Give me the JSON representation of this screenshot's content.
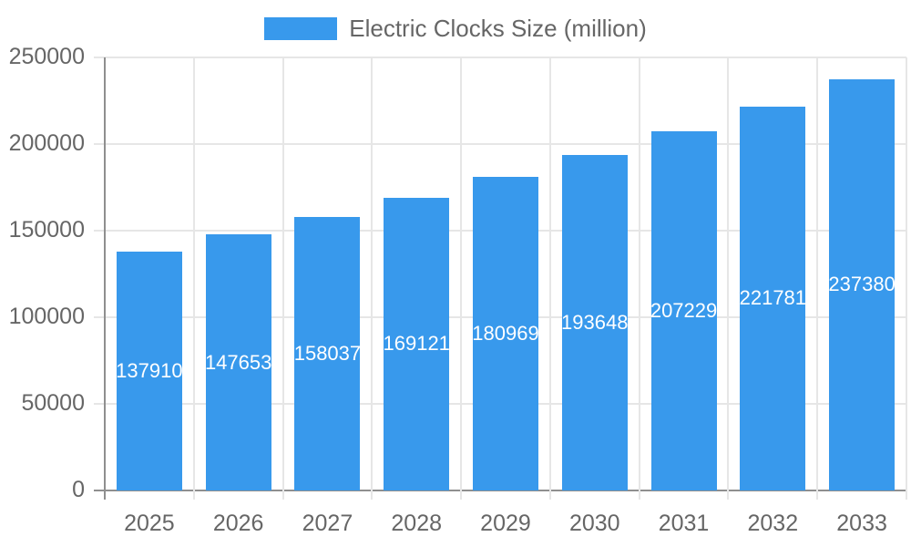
{
  "chart_data": {
    "type": "bar",
    "title": "",
    "legend": {
      "label": "Electric Clocks Size (million)",
      "position": "top"
    },
    "categories": [
      "2025",
      "2026",
      "2027",
      "2028",
      "2029",
      "2030",
      "2031",
      "2032",
      "2033"
    ],
    "series": [
      {
        "name": "Electric Clocks Size (million)",
        "values": [
          137910,
          147653,
          158037,
          169121,
          180969,
          193648,
          207229,
          221781,
          237380
        ]
      }
    ],
    "bar_labels": [
      "137910",
      "147653",
      "158037",
      "169121",
      "180969",
      "193648",
      "207229",
      "221781",
      "237380"
    ],
    "xlabel": "",
    "ylabel": "",
    "ylim": [
      0,
      250000
    ],
    "ytick_step": 50000,
    "ytick_labels": [
      "0",
      "50000",
      "100000",
      "150000",
      "200000",
      "250000"
    ],
    "grid": true,
    "colors": {
      "bar": "#3899EC",
      "bar_label_text": "#FFFFFF",
      "axis_text": "#666666",
      "grid_line": "#E6E6E6",
      "axis_line": "#8F8F8F",
      "background": "#FFFFFF"
    }
  }
}
